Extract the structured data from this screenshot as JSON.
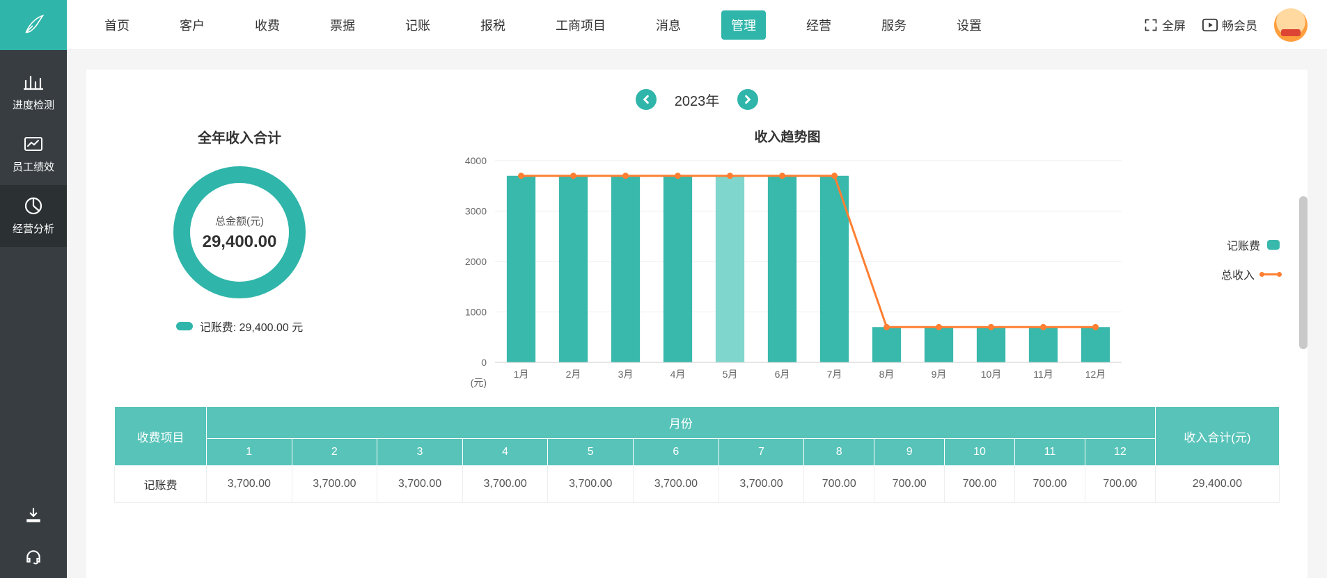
{
  "nav": {
    "items": [
      "首页",
      "客户",
      "收费",
      "票据",
      "记账",
      "报税",
      "工商项目",
      "消息",
      "管理",
      "经营",
      "服务",
      "设置"
    ],
    "active_index": 8,
    "fullscreen": "全屏",
    "member": "畅会员"
  },
  "sidebar": {
    "items": [
      {
        "label": "进度检测",
        "icon": "bars"
      },
      {
        "label": "员工绩效",
        "icon": "trend"
      },
      {
        "label": "经营分析",
        "icon": "pie"
      }
    ],
    "active_index": 2,
    "bottom_icons": [
      "download",
      "headset"
    ]
  },
  "year": "2023年",
  "summary": {
    "title": "全年收入合计",
    "ring_label": "总金额(元)",
    "ring_value": "29,400.00",
    "legend_text": "记账费: 29,400.00 元",
    "ring_color": "#2fb5aa"
  },
  "chart": {
    "title": "收入趋势图",
    "type": "bar+line",
    "categories": [
      "1月",
      "2月",
      "3月",
      "4月",
      "5月",
      "6月",
      "7月",
      "8月",
      "9月",
      "10月",
      "11月",
      "12月"
    ],
    "bar_values": [
      3700,
      3700,
      3700,
      3700,
      3700,
      3700,
      3700,
      700,
      700,
      700,
      700,
      700
    ],
    "line_values": [
      3700,
      3700,
      3700,
      3700,
      3700,
      3700,
      3700,
      700,
      700,
      700,
      700,
      700
    ],
    "bar_color": "#39b8ac",
    "bar_highlight_color": "#7fd6cd",
    "highlight_index": 4,
    "line_color": "#ff7f32",
    "ylim": [
      0,
      4000
    ],
    "ytick_step": 1000,
    "y_unit": "(元)",
    "legend": {
      "bar_label": "记账费",
      "line_label": "总收入"
    },
    "background_color": "#ffffff",
    "grid_color": "#eeeeee",
    "axis_text_color": "#666666",
    "bar_width_ratio": 0.55
  },
  "table": {
    "corner_label": "收费项目",
    "month_header": "月份",
    "months": [
      "1",
      "2",
      "3",
      "4",
      "5",
      "6",
      "7",
      "8",
      "9",
      "10",
      "11",
      "12"
    ],
    "total_header": "收入合计(元)",
    "rows": [
      {
        "name": "记账费",
        "values": [
          "3,700.00",
          "3,700.00",
          "3,700.00",
          "3,700.00",
          "3,700.00",
          "3,700.00",
          "3,700.00",
          "700.00",
          "700.00",
          "700.00",
          "700.00",
          "700.00"
        ],
        "total": "29,400.00"
      }
    ],
    "header_bg": "#58c3b9",
    "header_fg": "#ffffff"
  }
}
